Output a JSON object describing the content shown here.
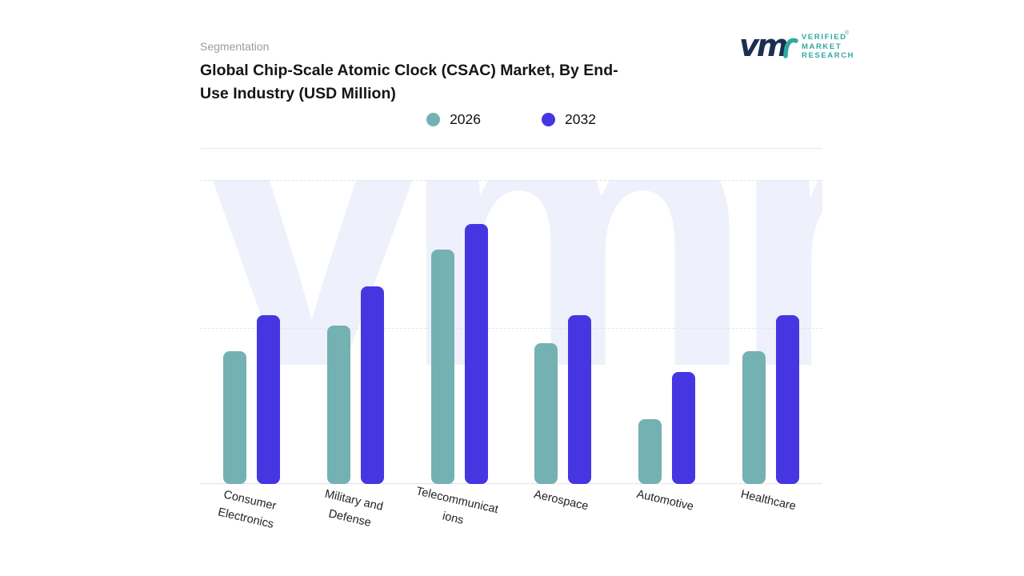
{
  "page": {
    "eyebrow": "Segmentation",
    "title_lines": [
      "Global Chip-Scale Atomic Clock (CSAC) Market, By End-",
      "Use Industry (USD Million)"
    ]
  },
  "logo": {
    "monogram": "vm",
    "name_lines": [
      "VERIFIED",
      "MARKET",
      "RESEARCH"
    ],
    "registered": "®",
    "accent_color": "#2fa9a2",
    "navy_color": "#1c2e52"
  },
  "legend": {
    "items": [
      {
        "label": "2026",
        "color": "#74b1b3"
      },
      {
        "label": "2032",
        "color": "#4636e2"
      }
    ]
  },
  "watermark": {
    "text": "vmr",
    "color": "#eef0fb"
  },
  "chart_data": {
    "type": "bar",
    "title": "Global Chip-Scale Atomic Clock (CSAC) Market, By End-Use Industry (USD Million)",
    "categories": [
      "Consumer\nElectronics",
      "Military and\nDefense",
      "Telecommunicat\nions",
      "Aerospace",
      "Automotive",
      "Healthcare"
    ],
    "series": [
      {
        "name": "2026",
        "color": "#74b1b3",
        "values": [
          51,
          61,
          90,
          54,
          25,
          51
        ]
      },
      {
        "name": "2032",
        "color": "#4636e2",
        "values": [
          65,
          76,
          100,
          65,
          43,
          65
        ]
      }
    ],
    "xlabel": "",
    "ylabel": "",
    "ylim": [
      0,
      100
    ],
    "axis_tick_labels_visible": false,
    "grid": "horizontal-dashed",
    "legend_position": "top-center"
  }
}
